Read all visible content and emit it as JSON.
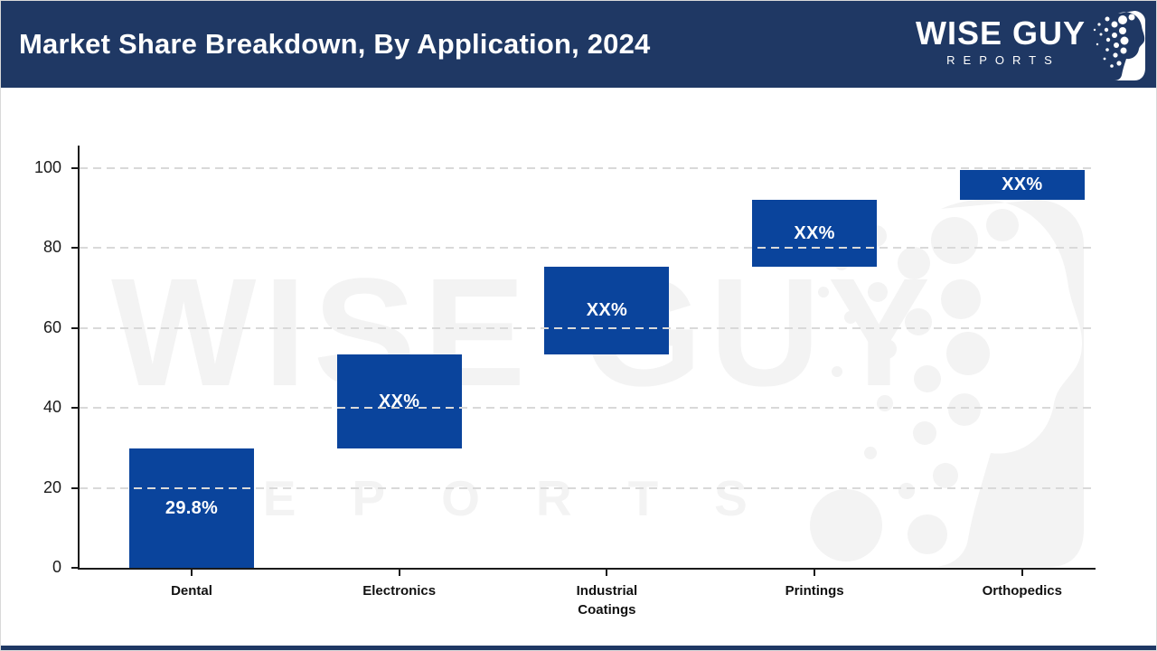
{
  "header": {
    "title": "Market Share Breakdown, By Application, 2024",
    "logo_line1": "WISE GUY",
    "logo_line2": "REPORTS"
  },
  "watermark": {
    "line1": "WISE GUY",
    "line2": "REPORTS"
  },
  "chart_data": {
    "type": "bar",
    "subtype": "waterfall",
    "title": "Market Share Breakdown, By Application, 2024",
    "categories": [
      "Dental",
      "Electronics",
      "Industrial Coatings",
      "Printings",
      "Orthopedics"
    ],
    "segments": [
      {
        "category": "Dental",
        "start": 0,
        "end": 29.8,
        "label": "29.8%"
      },
      {
        "category": "Electronics",
        "start": 29.8,
        "end": 53.4,
        "label": "XX%"
      },
      {
        "category": "Industrial Coatings",
        "start": 53.4,
        "end": 75.4,
        "label": "XX%"
      },
      {
        "category": "Printings",
        "start": 75.4,
        "end": 92.0,
        "label": "XX%"
      },
      {
        "category": "Orthopedics",
        "start": 92.0,
        "end": 99.5,
        "label": "XX%"
      }
    ],
    "yticks": [
      0,
      20,
      40,
      60,
      80,
      100
    ],
    "ylim": [
      0,
      105
    ],
    "xlabel": "",
    "ylabel": "",
    "legend": "none",
    "grid": "dashed-horizontal",
    "bar_color": "#0a449c",
    "value_label_color": "#ffffff"
  },
  "colors": {
    "header_bg": "#1f3864",
    "footer_bg": "#1f3864",
    "bar": "#0a449c",
    "gridline": "#d9d9d9",
    "axis": "#1a1a1a",
    "watermark": "#f3f3f3"
  }
}
